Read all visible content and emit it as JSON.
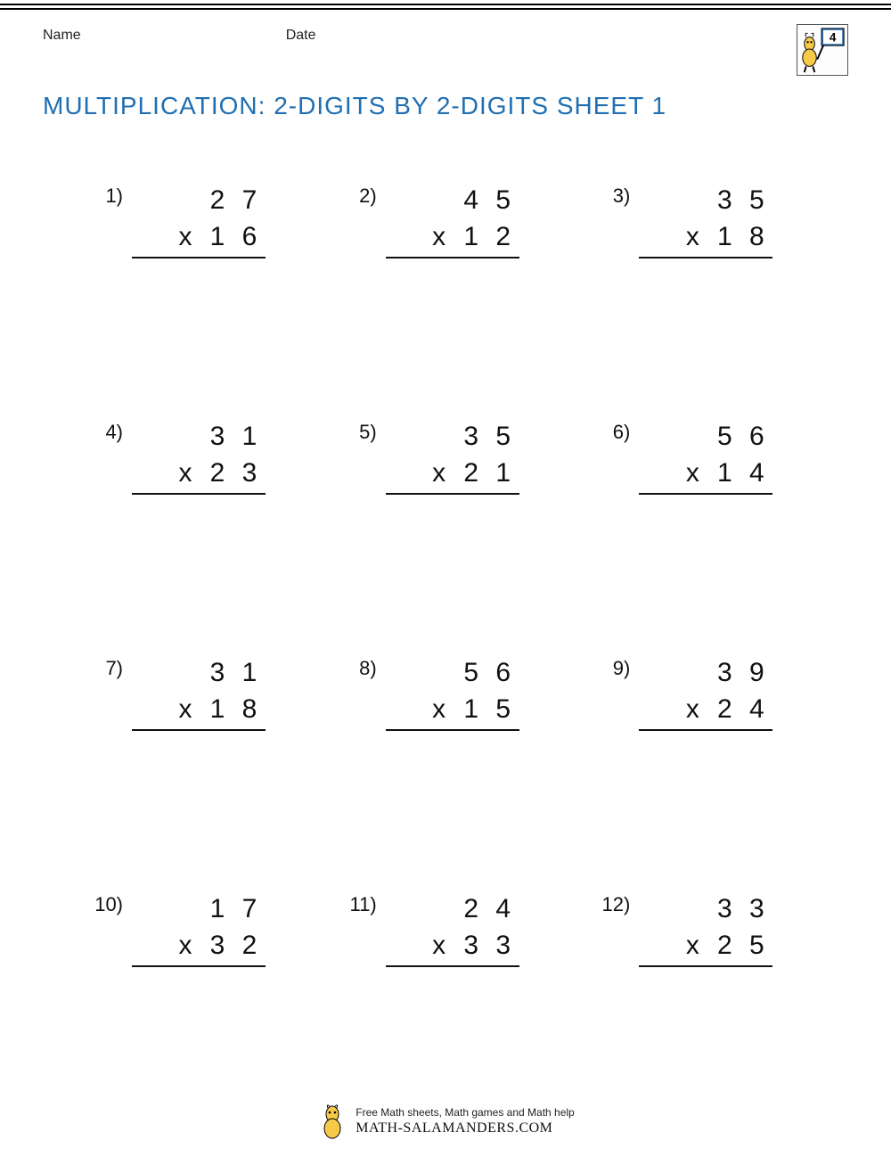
{
  "meta": {
    "name_label": "Name",
    "date_label": "Date"
  },
  "title": "MULTIPLICATION: 2-DIGITS BY 2-DIGITS SHEET 1",
  "grade_badge": "4",
  "colors": {
    "title": "#1f6fb2",
    "text": "#111111",
    "rule": "#111111",
    "logo_yellow": "#f7c948",
    "logo_blue": "#2e6fb4"
  },
  "problems": [
    {
      "n": "1)",
      "top": [
        "2",
        "7"
      ],
      "bot": [
        "1",
        "6"
      ]
    },
    {
      "n": "2)",
      "top": [
        "4",
        "5"
      ],
      "bot": [
        "1",
        "2"
      ]
    },
    {
      "n": "3)",
      "top": [
        "3",
        "5"
      ],
      "bot": [
        "1",
        "8"
      ]
    },
    {
      "n": "4)",
      "top": [
        "3",
        "1"
      ],
      "bot": [
        "2",
        "3"
      ]
    },
    {
      "n": "5)",
      "top": [
        "3",
        "5"
      ],
      "bot": [
        "2",
        "1"
      ]
    },
    {
      "n": "6)",
      "top": [
        "5",
        "6"
      ],
      "bot": [
        "1",
        "4"
      ]
    },
    {
      "n": "7)",
      "top": [
        "3",
        "1"
      ],
      "bot": [
        "1",
        "8"
      ]
    },
    {
      "n": "8)",
      "top": [
        "5",
        "6"
      ],
      "bot": [
        "1",
        "5"
      ]
    },
    {
      "n": "9)",
      "top": [
        "3",
        "9"
      ],
      "bot": [
        "2",
        "4"
      ]
    },
    {
      "n": "10)",
      "top": [
        "1",
        "7"
      ],
      "bot": [
        "3",
        "2"
      ]
    },
    {
      "n": "11)",
      "top": [
        "2",
        "4"
      ],
      "bot": [
        "3",
        "3"
      ]
    },
    {
      "n": "12)",
      "top": [
        "3",
        "3"
      ],
      "bot": [
        "2",
        "5"
      ]
    }
  ],
  "operator": "x",
  "footer": {
    "line1": "Free Math sheets, Math games and Math help",
    "site": "MATH-SALAMANDERS.COM"
  }
}
